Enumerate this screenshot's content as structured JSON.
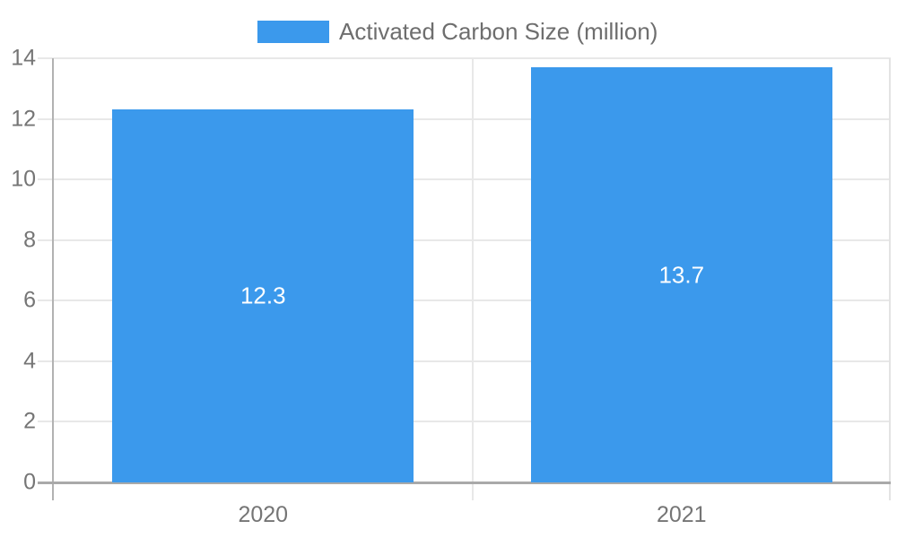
{
  "chart_data": {
    "type": "bar",
    "title": "",
    "legend": {
      "label": "Activated Carbon Size (million)",
      "position": "top"
    },
    "categories": [
      "2020",
      "2021"
    ],
    "series": [
      {
        "name": "Activated Carbon Size (million)",
        "color": "#3B99EC",
        "values": [
          12.3,
          13.7
        ]
      }
    ],
    "data_labels": {
      "show": true,
      "color": "#FFFFFF",
      "position": "center",
      "values": [
        "12.3",
        "13.7"
      ]
    },
    "xlabel": "",
    "ylabel": "",
    "ylim": [
      0,
      14
    ],
    "yticks": [
      0,
      2,
      4,
      6,
      8,
      10,
      12,
      14
    ],
    "grid": true,
    "colors": {
      "background": "#FFFFFF",
      "grid": "#E8E8E8",
      "axis": "#B2B2B2",
      "baseline": "#A9A9A9",
      "border": "#E3E3E3",
      "tick_text": "#757575",
      "legend_text": "#6E6E6E"
    }
  }
}
